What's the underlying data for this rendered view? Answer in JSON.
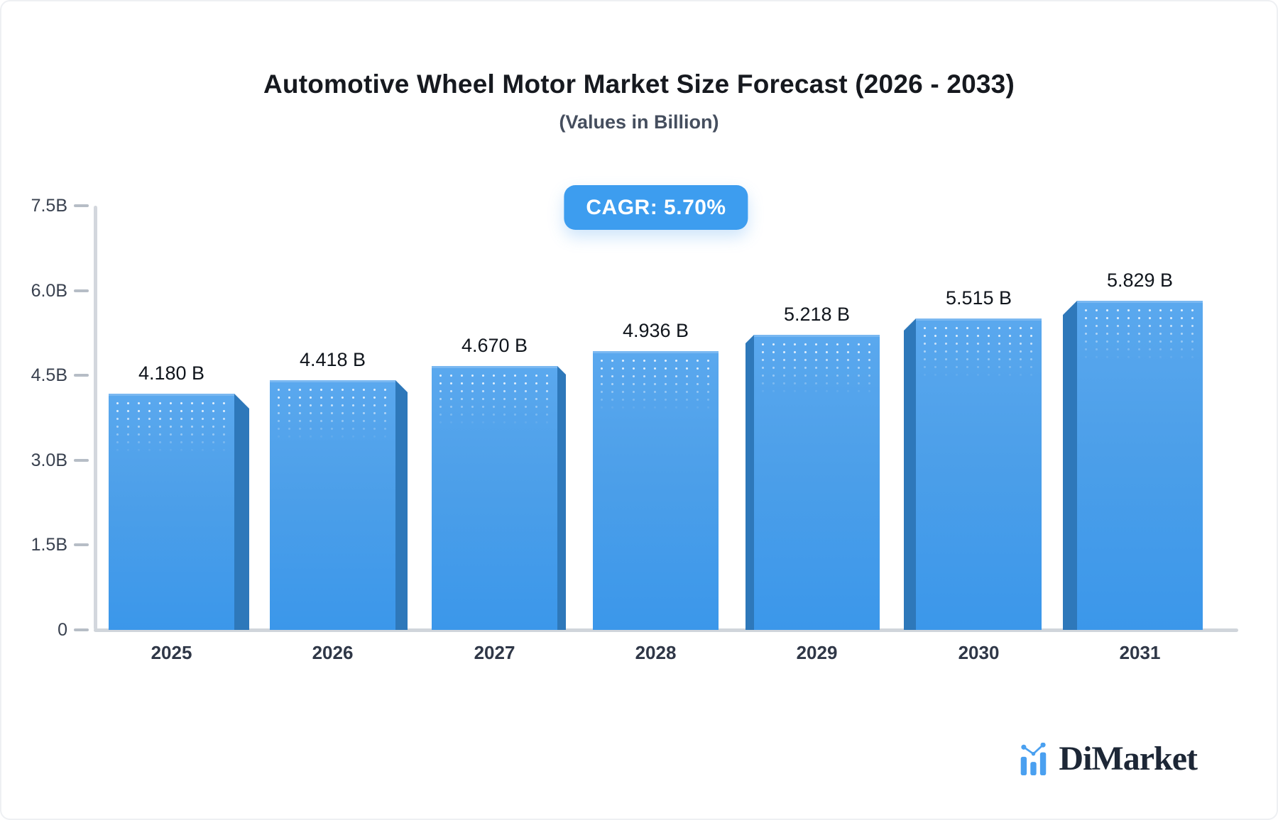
{
  "header": {
    "title": "Automotive Wheel Motor Market Size Forecast (2026 - 2033)",
    "subtitle": "(Values in Billion)",
    "cagr_label": "CAGR: 5.70%"
  },
  "logo": {
    "icon": "bar-chart-trend-icon",
    "text": "DiMarket",
    "icon_color": "#4aa0f0",
    "text_color": "#1d2736"
  },
  "colors": {
    "bar_face": "#4c9fe9",
    "bar_side": "#2e78ba",
    "badge_background": "#3d9def",
    "badge_text": "#ffffff",
    "axis": "#d0d5db",
    "label_text": "#10151c"
  },
  "chart_data": {
    "type": "bar",
    "title": "Automotive Wheel Motor Market Size Forecast (2026 - 2033)",
    "subtitle": "(Values in Billion)",
    "cagr": "5.70%",
    "categories": [
      "2025",
      "2026",
      "2027",
      "2028",
      "2029",
      "2030",
      "2031"
    ],
    "values": [
      4.18,
      4.418,
      4.67,
      4.936,
      5.218,
      5.515,
      5.829
    ],
    "labels": [
      "4.180 B",
      "4.418 B",
      "4.670 B",
      "4.936 B",
      "5.218 B",
      "5.515 B",
      "5.829 B"
    ],
    "unit": "Billion",
    "xlabel": "",
    "ylabel": "",
    "ylim": [
      0,
      7.5
    ],
    "ytick_labels": [
      "7.5B",
      "6.0B",
      "4.5B",
      "3.0B",
      "1.5B",
      "0"
    ],
    "ytick_values": [
      7.5,
      6.0,
      4.5,
      3.0,
      1.5,
      0
    ],
    "grid": false,
    "legend": false,
    "bar_style": "3d-center-perspective"
  }
}
